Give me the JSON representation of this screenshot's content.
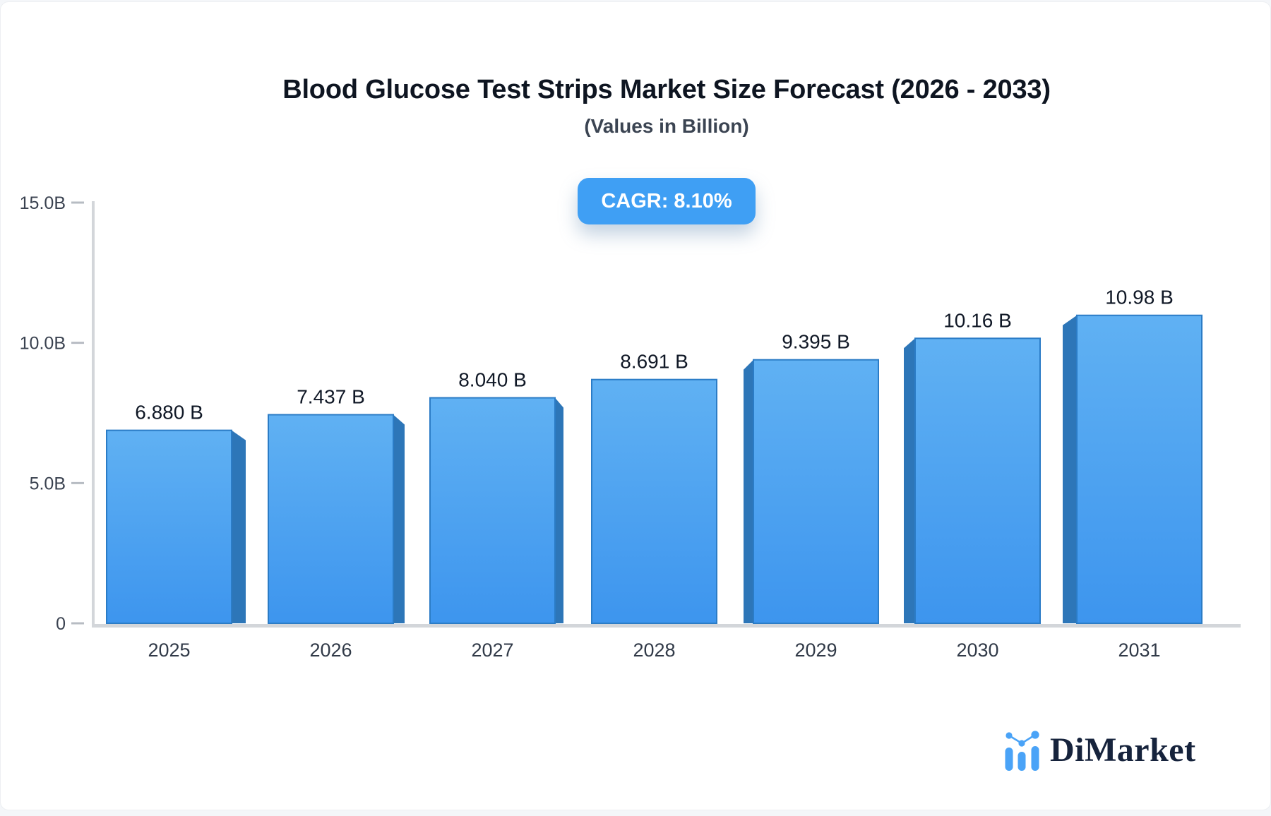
{
  "chart_data": {
    "type": "bar",
    "title": "Blood Glucose Test Strips Market Size Forecast (2026 - 2033)",
    "subtitle": "(Values in Billion)",
    "cagr_label": "CAGR: 8.10%",
    "categories": [
      "2025",
      "2026",
      "2027",
      "2028",
      "2029",
      "2030",
      "2031"
    ],
    "values": [
      6.88,
      7.437,
      8.04,
      8.691,
      9.395,
      10.16,
      10.98
    ],
    "value_labels": [
      "6.880 B",
      "7.437 B",
      "8.040 B",
      "8.691 B",
      "9.395 B",
      "10.16 B",
      "10.98 B"
    ],
    "xlabel": "",
    "ylabel": "",
    "ylim": [
      0,
      15
    ],
    "y_ticks": [
      {
        "value": 0,
        "label": "0"
      },
      {
        "value": 5,
        "label": "5.0B"
      },
      {
        "value": 10,
        "label": "10.0B"
      },
      {
        "value": 15,
        "label": "15.0B"
      }
    ],
    "grid": false,
    "legend": "none",
    "bar_style": "pseudo-3d",
    "colors": {
      "bar_face_top": "#60b1f3",
      "bar_face_bottom": "#3d95ee",
      "bar_side": "#2d76b8",
      "bar_stroke": "#2b7cc6",
      "axis_line": "#d3d6da",
      "tick_mark": "#b7bcc3",
      "axis_label": "#3a4250",
      "x_axis_label": "#313a48",
      "value_label": "#101826",
      "badge_bg": "#3f9ff4",
      "badge_text": "#ffffff"
    }
  },
  "branding": {
    "name": "DiMarket",
    "logo_icon": "mini-bar-chart-icon",
    "brand_navy": "#16233c",
    "brand_blue": "#4aa3f7"
  }
}
